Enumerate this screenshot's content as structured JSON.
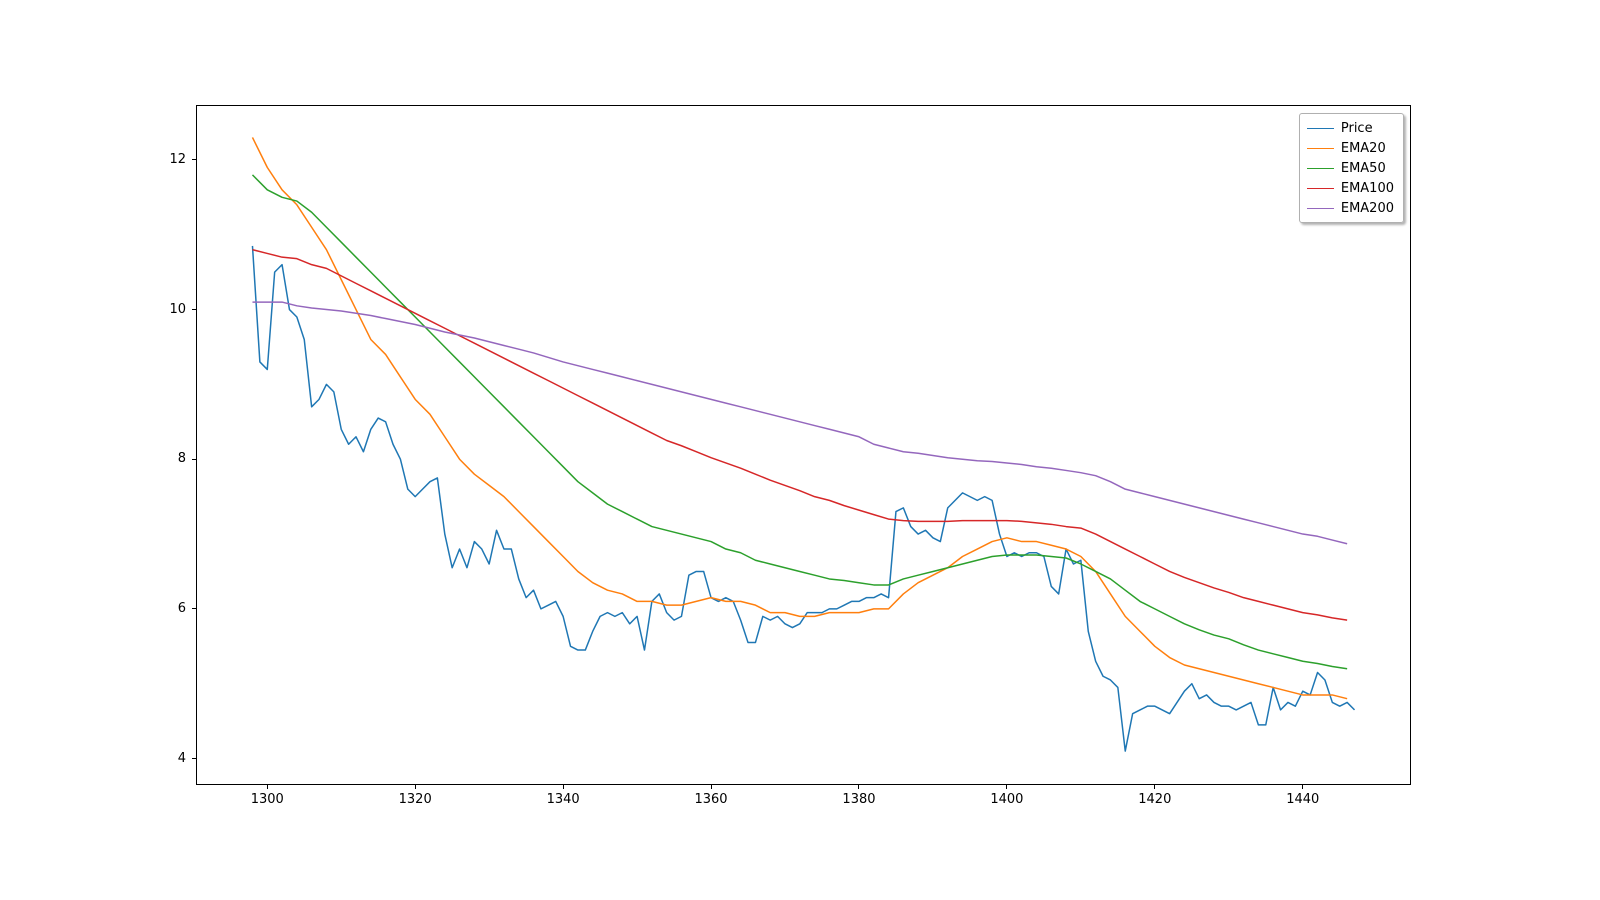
{
  "figure": {
    "background": "#ffffff",
    "plot_background": "#ffffff",
    "spine_color": "#000000"
  },
  "chart_data": {
    "type": "line",
    "title": "",
    "xlabel": "",
    "ylabel": "",
    "grid": false,
    "xlim": [
      1290.5,
      1454.5
    ],
    "ylim": [
      3.66,
      12.72
    ],
    "x_ticks": [
      1300,
      1320,
      1340,
      1360,
      1380,
      1400,
      1420,
      1440
    ],
    "y_ticks": [
      4,
      6,
      8,
      10,
      12
    ],
    "legend": {
      "position": "upper right",
      "entries": [
        "Price",
        "EMA20",
        "EMA50",
        "EMA100",
        "EMA200"
      ]
    },
    "series": [
      {
        "name": "Price",
        "color": "#1f77b4",
        "x_start": 1298,
        "x_step": 1,
        "y": [
          10.85,
          9.3,
          9.2,
          10.5,
          10.6,
          10.0,
          9.9,
          9.6,
          8.7,
          8.8,
          9.0,
          8.9,
          8.4,
          8.2,
          8.3,
          8.1,
          8.4,
          8.55,
          8.5,
          8.2,
          8.0,
          7.6,
          7.5,
          7.6,
          7.7,
          7.75,
          7.0,
          6.55,
          6.8,
          6.55,
          6.9,
          6.8,
          6.6,
          7.05,
          6.8,
          6.8,
          6.4,
          6.15,
          6.25,
          6.0,
          6.05,
          6.1,
          5.9,
          5.5,
          5.45,
          5.45,
          5.7,
          5.9,
          5.95,
          5.9,
          5.95,
          5.8,
          5.9,
          5.45,
          6.1,
          6.2,
          5.95,
          5.85,
          5.9,
          6.45,
          6.5,
          6.5,
          6.15,
          6.1,
          6.15,
          6.1,
          5.85,
          5.55,
          5.55,
          5.9,
          5.85,
          5.9,
          5.8,
          5.75,
          5.8,
          5.95,
          5.95,
          5.95,
          6.0,
          6.0,
          6.05,
          6.1,
          6.1,
          6.15,
          6.15,
          6.2,
          6.15,
          7.3,
          7.35,
          7.1,
          7.0,
          7.05,
          6.95,
          6.9,
          7.35,
          7.45,
          7.55,
          7.5,
          7.45,
          7.5,
          7.45,
          7.0,
          6.7,
          6.75,
          6.7,
          6.75,
          6.75,
          6.7,
          6.3,
          6.2,
          6.8,
          6.6,
          6.65,
          5.7,
          5.3,
          5.1,
          5.05,
          4.95,
          4.1,
          4.6,
          4.65,
          4.7,
          4.7,
          4.65,
          4.6,
          4.75,
          4.9,
          5.0,
          4.8,
          4.85,
          4.75,
          4.7,
          4.7,
          4.65,
          4.7,
          4.75,
          4.45,
          4.45,
          4.95,
          4.65,
          4.75,
          4.7,
          4.9,
          4.85,
          5.15,
          5.05,
          4.75,
          4.7,
          4.75,
          4.65
        ]
      },
      {
        "name": "EMA20",
        "color": "#ff7f0e",
        "x_start": 1298,
        "x_step": 2,
        "y": [
          12.3,
          11.9,
          11.6,
          11.4,
          11.1,
          10.8,
          10.4,
          10.0,
          9.6,
          9.4,
          9.1,
          8.8,
          8.6,
          8.3,
          8.0,
          7.8,
          7.65,
          7.5,
          7.3,
          7.1,
          6.9,
          6.7,
          6.5,
          6.35,
          6.25,
          6.2,
          6.1,
          6.1,
          6.05,
          6.05,
          6.1,
          6.15,
          6.1,
          6.1,
          6.05,
          5.95,
          5.95,
          5.9,
          5.9,
          5.95,
          5.95,
          5.95,
          6.0,
          6.0,
          6.2,
          6.35,
          6.45,
          6.55,
          6.7,
          6.8,
          6.9,
          6.95,
          6.9,
          6.9,
          6.85,
          6.8,
          6.7,
          6.5,
          6.2,
          5.9,
          5.7,
          5.5,
          5.35,
          5.25,
          5.2,
          5.15,
          5.1,
          5.05,
          5.0,
          4.95,
          4.9,
          4.85,
          4.85,
          4.85,
          4.8
        ]
      },
      {
        "name": "EMA50",
        "color": "#2ca02c",
        "x_start": 1298,
        "x_step": 2,
        "y": [
          11.8,
          11.6,
          11.5,
          11.45,
          11.3,
          11.1,
          10.9,
          10.7,
          10.5,
          10.3,
          10.1,
          9.9,
          9.7,
          9.5,
          9.3,
          9.1,
          8.9,
          8.7,
          8.5,
          8.3,
          8.1,
          7.9,
          7.7,
          7.55,
          7.4,
          7.3,
          7.2,
          7.1,
          7.05,
          7.0,
          6.95,
          6.9,
          6.8,
          6.75,
          6.65,
          6.6,
          6.55,
          6.5,
          6.45,
          6.4,
          6.38,
          6.35,
          6.32,
          6.32,
          6.4,
          6.45,
          6.5,
          6.55,
          6.6,
          6.65,
          6.7,
          6.72,
          6.72,
          6.72,
          6.7,
          6.68,
          6.6,
          6.5,
          6.4,
          6.25,
          6.1,
          6.0,
          5.9,
          5.8,
          5.72,
          5.65,
          5.6,
          5.52,
          5.45,
          5.4,
          5.35,
          5.3,
          5.27,
          5.23,
          5.2
        ]
      },
      {
        "name": "EMA100",
        "color": "#d62728",
        "x_start": 1298,
        "x_step": 2,
        "y": [
          10.8,
          10.75,
          10.7,
          10.68,
          10.6,
          10.55,
          10.45,
          10.35,
          10.25,
          10.15,
          10.05,
          9.95,
          9.85,
          9.75,
          9.65,
          9.55,
          9.45,
          9.35,
          9.25,
          9.15,
          9.05,
          8.95,
          8.85,
          8.75,
          8.65,
          8.55,
          8.45,
          8.35,
          8.25,
          8.18,
          8.1,
          8.02,
          7.95,
          7.88,
          7.8,
          7.72,
          7.65,
          7.58,
          7.5,
          7.45,
          7.38,
          7.32,
          7.26,
          7.2,
          7.18,
          7.17,
          7.17,
          7.17,
          7.18,
          7.18,
          7.18,
          7.18,
          7.17,
          7.15,
          7.13,
          7.1,
          7.08,
          7.0,
          6.9,
          6.8,
          6.7,
          6.6,
          6.5,
          6.42,
          6.35,
          6.28,
          6.22,
          6.15,
          6.1,
          6.05,
          6.0,
          5.95,
          5.92,
          5.88,
          5.85
        ]
      },
      {
        "name": "EMA200",
        "color": "#9467bd",
        "x_start": 1298,
        "x_step": 2,
        "y": [
          10.1,
          10.1,
          10.1,
          10.05,
          10.02,
          10.0,
          9.98,
          9.95,
          9.92,
          9.88,
          9.84,
          9.8,
          9.75,
          9.7,
          9.66,
          9.62,
          9.57,
          9.52,
          9.47,
          9.42,
          9.36,
          9.3,
          9.25,
          9.2,
          9.15,
          9.1,
          9.05,
          9.0,
          8.95,
          8.9,
          8.85,
          8.8,
          8.75,
          8.7,
          8.65,
          8.6,
          8.55,
          8.5,
          8.45,
          8.4,
          8.35,
          8.3,
          8.2,
          8.15,
          8.1,
          8.08,
          8.05,
          8.02,
          8.0,
          7.98,
          7.97,
          7.95,
          7.93,
          7.9,
          7.88,
          7.85,
          7.82,
          7.78,
          7.7,
          7.6,
          7.55,
          7.5,
          7.45,
          7.4,
          7.35,
          7.3,
          7.25,
          7.2,
          7.15,
          7.1,
          7.05,
          7.0,
          6.97,
          6.92,
          6.87
        ]
      }
    ]
  }
}
